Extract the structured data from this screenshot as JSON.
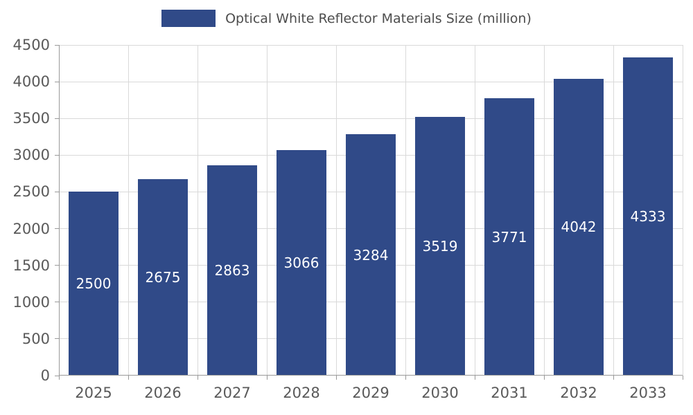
{
  "chart_data": {
    "type": "bar",
    "title": "Optical White Reflector Materials Size (million)",
    "categories": [
      "2025",
      "2026",
      "2027",
      "2028",
      "2029",
      "2030",
      "2031",
      "2032",
      "2033"
    ],
    "values": [
      2500,
      2675,
      2863,
      3066,
      3284,
      3519,
      3771,
      4042,
      4333
    ],
    "xlabel": "",
    "ylabel": "",
    "ylim": [
      0,
      4500
    ],
    "yticks": [
      0,
      500,
      1000,
      1500,
      2000,
      2500,
      3000,
      3500,
      4000,
      4500
    ],
    "grid": true,
    "legend_position": "top-center",
    "value_labels": "inside-center",
    "colors": {
      "bar": "#304a88",
      "grid": "#d9d9d9",
      "axis": "#999999",
      "tick_text": "#595959",
      "title_text": "#4d4d4d",
      "value_label_text": "#ffffff",
      "background": "#ffffff"
    }
  }
}
